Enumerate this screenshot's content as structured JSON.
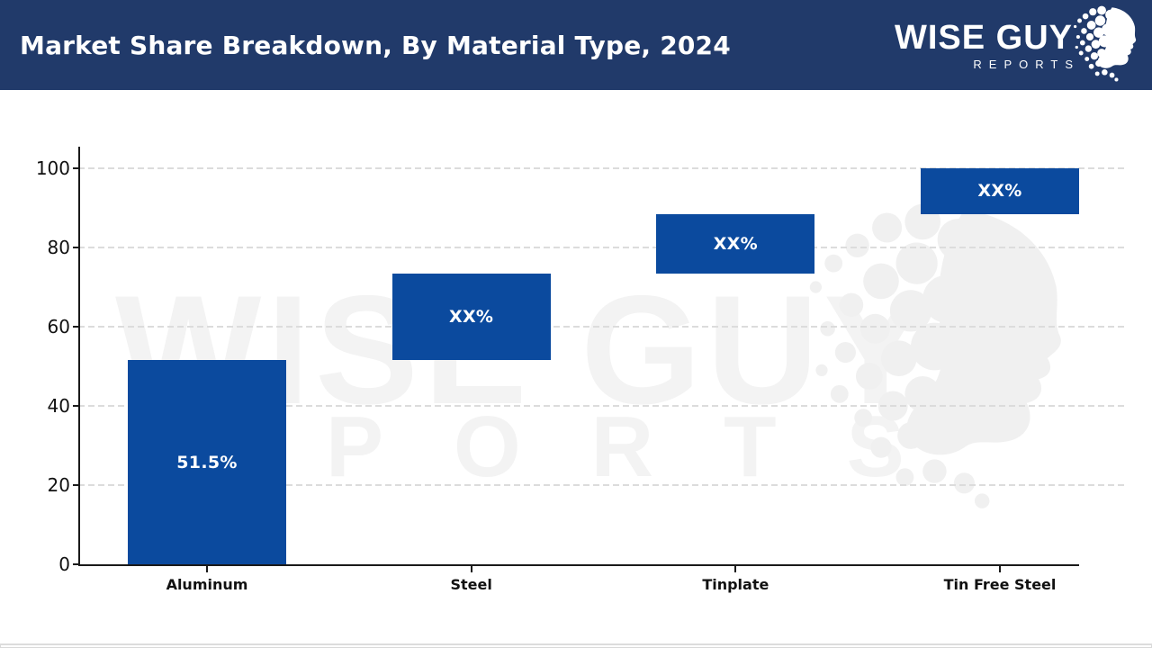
{
  "header": {
    "title": "Market Share Breakdown, By Material Type, 2024",
    "bg_color": "#213a6a",
    "logo": {
      "line1": "WISE GUY",
      "line2": "REPORTS"
    }
  },
  "watermark": {
    "line1": "WISE GUY",
    "line2": "PORTS"
  },
  "chart_data": {
    "type": "bar",
    "variant": "waterfall-stacked-breakdown",
    "title": "Market Share Breakdown, By Material Type, 2024",
    "categories": [
      "Aluminum",
      "Steel",
      "Tinplate",
      "Tin Free Steel"
    ],
    "series": [
      {
        "name": "Market Share",
        "segments": [
          [
            0,
            51.5
          ],
          [
            51.5,
            73.5
          ],
          [
            73.5,
            88.5
          ],
          [
            88.5,
            100
          ]
        ],
        "values": [
          51.5,
          22,
          15,
          11.5
        ]
      }
    ],
    "bar_labels": [
      "51.5%",
      "XX%",
      "XX%",
      "XX%"
    ],
    "xlabel": "",
    "ylabel": "",
    "ylim": [
      0,
      100
    ],
    "yticks": [
      0,
      20,
      40,
      60,
      80,
      100
    ],
    "grid": "horizontal-dashed",
    "legend": "none",
    "bar_color": "#0b4a9e",
    "gridline_color": "#dcdcdc"
  }
}
